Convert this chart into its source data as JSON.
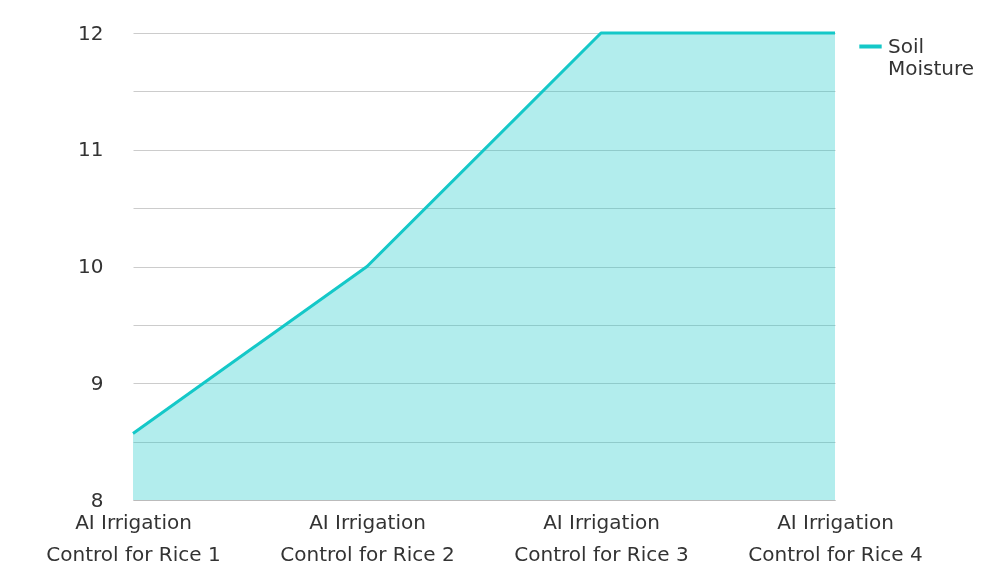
{
  "chart_data": {
    "type": "area",
    "categories": [
      "AI Irrigation Control for Rice 1",
      "AI Irrigation Control for Rice 2",
      "AI Irrigation Control for Rice 3",
      "AI Irrigation Control for Rice 4"
    ],
    "series": [
      {
        "name": "Soil Moisture",
        "color": "#14c8c8",
        "values": [
          8.57,
          10,
          12,
          12
        ]
      }
    ],
    "ylim": [
      8,
      12
    ],
    "yticks": [
      8,
      {
        "value": 8.5,
        "label": null
      },
      9,
      {
        "value": 9.5,
        "label": null
      },
      10,
      {
        "value": 10.5,
        "label": null
      },
      11,
      {
        "value": 11.5,
        "label": null
      },
      12
    ],
    "grid": "y",
    "legend": "top right"
  }
}
